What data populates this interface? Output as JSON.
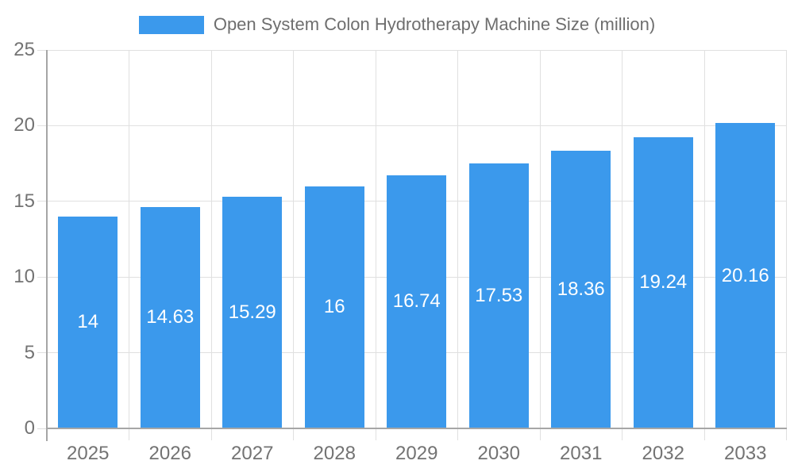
{
  "legend": {
    "label": "Open System Colon Hydrotherapy Machine Size (million)",
    "swatch_color": "#3B99EC"
  },
  "chart_data": {
    "type": "bar",
    "title": "Open System Colon Hydrotherapy Machine Size (million)",
    "categories": [
      "2025",
      "2026",
      "2027",
      "2028",
      "2029",
      "2030",
      "2031",
      "2032",
      "2033"
    ],
    "values": [
      14,
      14.63,
      15.29,
      16,
      16.74,
      17.53,
      18.36,
      19.24,
      20.16
    ],
    "value_labels": [
      "14",
      "14.63",
      "15.29",
      "16",
      "16.74",
      "17.53",
      "18.36",
      "19.24",
      "20.16"
    ],
    "xlabel": "",
    "ylabel": "",
    "ylim": [
      0,
      25
    ],
    "yticks": [
      0,
      5,
      10,
      15,
      20,
      25
    ],
    "grid": true,
    "legend_position": "top",
    "bar_color": "#3B99EC",
    "value_label_color": "#FFFFFF",
    "axis_text_color": "#737373",
    "grid_color": "#E0E0E0",
    "axis_line_color": "#A6A6A6"
  }
}
